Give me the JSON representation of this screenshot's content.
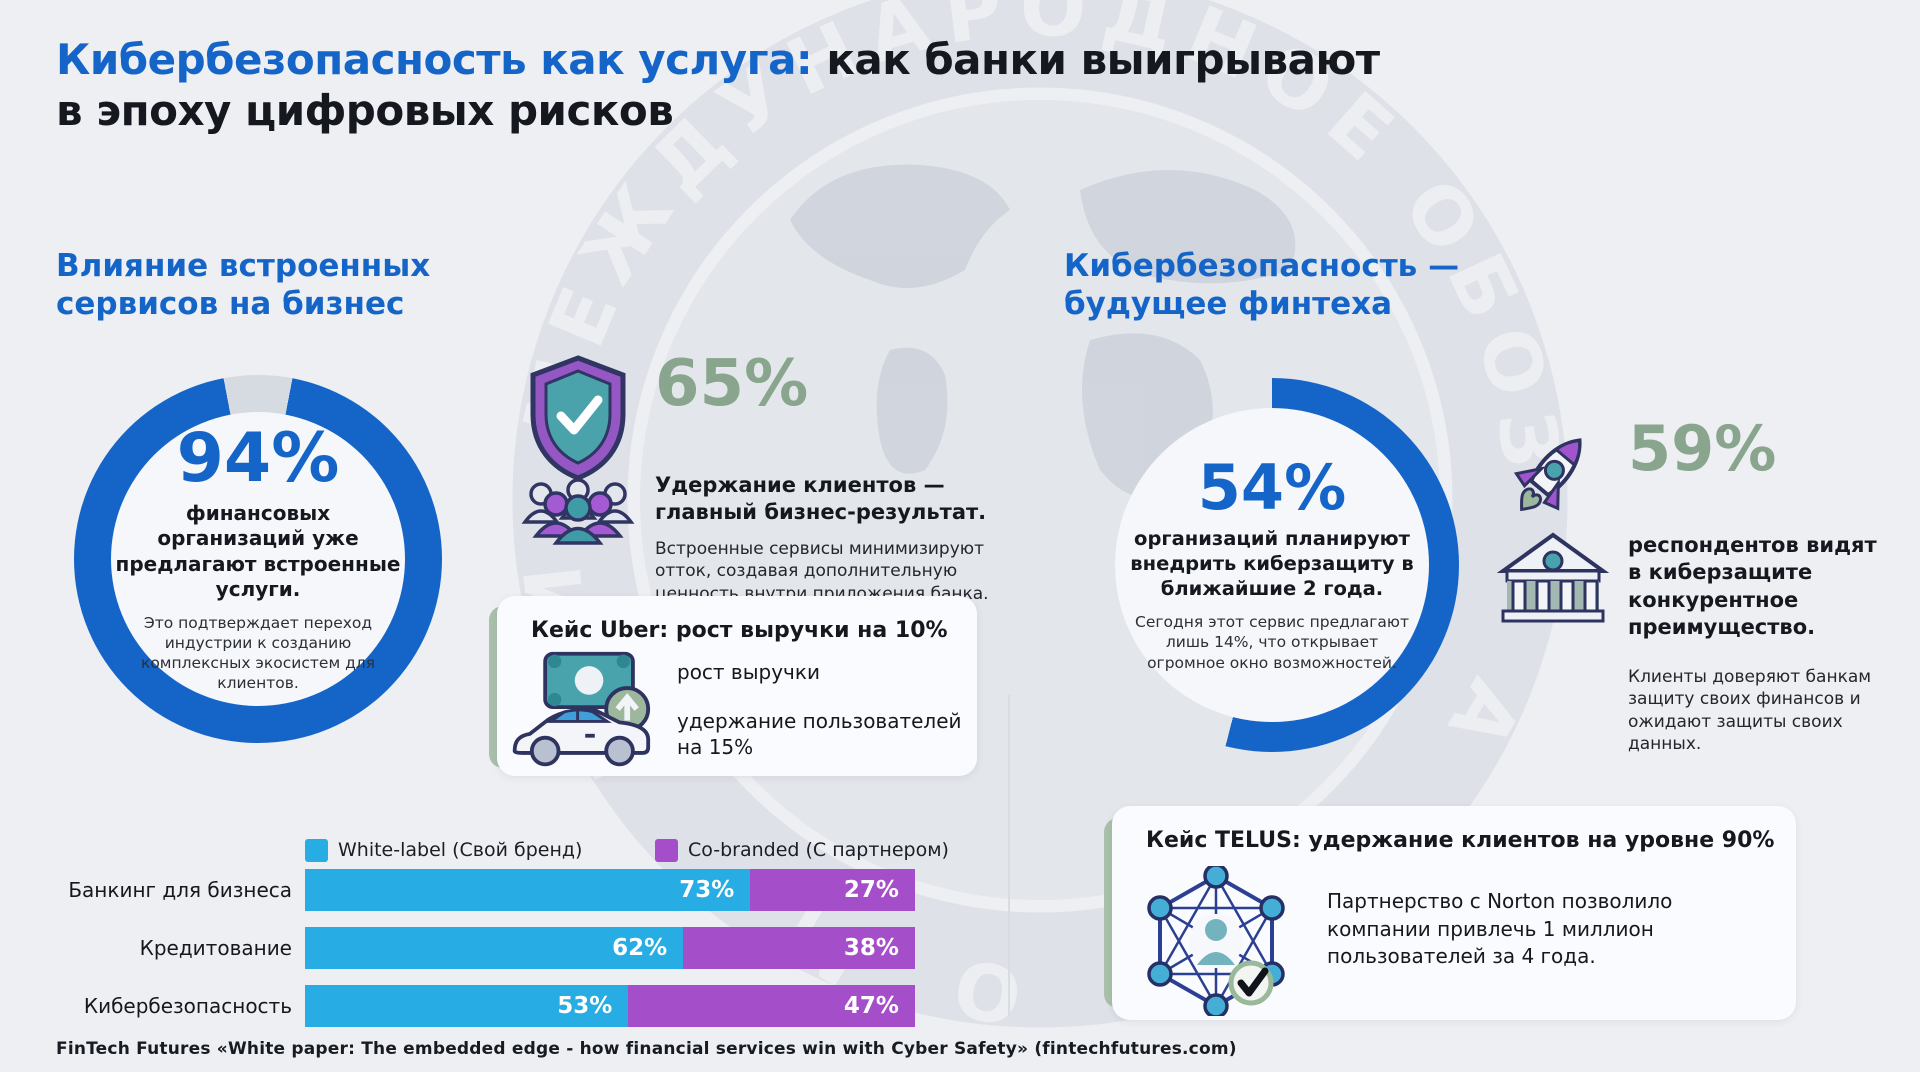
{
  "title": {
    "accent": "Кибербезопасность как услуга:",
    "rest": " как банки выигрывают",
    "line2": "в эпоху цифровых рисков"
  },
  "colors": {
    "accent_blue": "#1565c8",
    "sage_green": "#8aa58e",
    "bar_blue": "#27ace4",
    "bar_purple": "#a44fc9",
    "ink": "#15181e"
  },
  "left_section": {
    "heading_line1": "Влияние встроенных",
    "heading_line2": "сервисов на бизнес",
    "donut": {
      "value": "94%",
      "percent": 94,
      "lead": "финансовых организаций уже предлагают встроенные услуги.",
      "note": "Это подтверждает переход индустрии к созданию комплексных экосистем для клиентов."
    },
    "stat": {
      "value": "65%",
      "icon": "shield-check-people-icon",
      "lead": "Удержание клиентов — главный бизнес-результат.",
      "note": "Встроенные сервисы минимизируют отток, создавая дополнительную ценность внутри приложения банка."
    },
    "case_card": {
      "title": "Кейс Uber: рост выручки на 10%",
      "icon": "money-car-icon",
      "items": [
        "рост выручки",
        "удержание пользователей на 15%"
      ]
    }
  },
  "right_section": {
    "heading_line1": "Кибербезопасность —",
    "heading_line2": "будущее финтеха",
    "donut": {
      "value": "54%",
      "percent": 54,
      "lead": "организаций планируют внедрить киберзащиту в ближайшие 2 года.",
      "note": "Сегодня этот сервис предлагают лишь 14%, что открывает огромное окно возможностей."
    },
    "stat": {
      "value": "59%",
      "icon": "rocket-bank-icon",
      "lead": "респондентов видят в киберзащите конкурентное преимущество.",
      "note": "Клиенты доверяют банкам защиту своих финансов и ожидают защиты своих данных."
    },
    "case_card": {
      "title": "Кейс TELUS: удержание клиентов на уровне 90%",
      "icon": "network-check-icon",
      "text": "Партнерство с Norton позволило компании привлечь 1 миллион пользователей за 4 года."
    }
  },
  "chart_data": {
    "type": "bar",
    "orientation": "horizontal",
    "stacked": true,
    "categories": [
      "Банкинг для бизнеса",
      "Кредитование",
      "Кибербезопасность"
    ],
    "series": [
      {
        "name": "White-label (Свой бренд)",
        "color": "#27ace4",
        "values": [
          73,
          62,
          53
        ]
      },
      {
        "name": "Co-branded (С партнером)",
        "color": "#a44fc9",
        "values": [
          27,
          38,
          47
        ]
      }
    ],
    "value_suffix": "%",
    "xlim": [
      0,
      100
    ],
    "legend_position": "top",
    "grid": false
  },
  "watermark": {
    "arc_text_top": "МЕЖДУНАРОДНОЕ ОБОЗРЕНИЕ",
    "arc_text_bottom": "АС КОМ РИ"
  },
  "footer": {
    "source": "FinTech Futures «White paper: The embedded edge - how financial services win with Cyber Safety» (fintechfutures.com)"
  }
}
